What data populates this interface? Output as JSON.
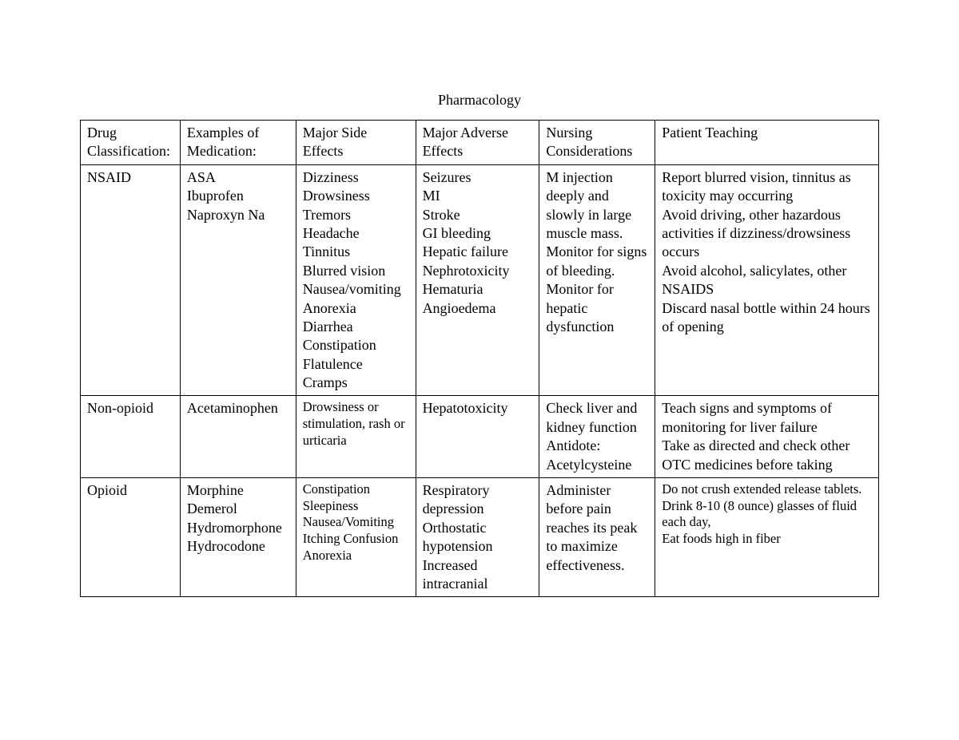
{
  "page": {
    "title": "Pharmacology"
  },
  "table": {
    "headers": {
      "c1": "Drug Classification:",
      "c2": "Examples of Medication:",
      "c3": "Major Side Effects",
      "c4": "Major Adverse Effects",
      "c5": "Nursing Considerations",
      "c6": "Patient Teaching"
    },
    "rows": [
      {
        "c1": "NSAID",
        "c2": "ASA\nIbuprofen\nNaproxyn Na",
        "c3": "Dizziness\nDrowsiness\nTremors\nHeadache\nTinnitus\nBlurred vision\nNausea/vomiting Anorexia\nDiarrhea\nConstipation\nFlatulence\nCramps",
        "c4": "Seizures\nMI\nStroke\nGI bleeding\nHepatic failure\nNephrotoxicity\nHematuria\nAngioedema",
        "c5": "M injection deeply and slowly in large muscle mass.\nMonitor for signs of bleeding.\nMonitor for hepatic dysfunction",
        "c6": "Report blurred vision, tinnitus as toxicity may occurring\nAvoid driving, other hazardous activities if dizziness/drowsiness occurs\nAvoid alcohol, salicylates, other NSAIDS\nDiscard nasal bottle within 24 hours of opening",
        "c3_class": "",
        "c6_class": ""
      },
      {
        "c1": "Non-opioid",
        "c2": "Acetaminophen",
        "c3": "Drowsiness or stimulation, rash or urticaria",
        "c4": "Hepatotoxicity",
        "c5": "Check liver and kidney function\nAntidote: Acetylcysteine",
        "c6": "Teach signs and symptoms of monitoring for liver failure\nTake as directed and check other OTC medicines before taking",
        "c3_class": "smaller",
        "c6_class": ""
      },
      {
        "c1": "Opioid",
        "c2": "Morphine\nDemerol\nHydromorphone\nHydrocodone",
        "c3": "Constipation\nSleepiness\nNausea/Vomiting\nItching Confusion\nAnorexia",
        "c4": "Respiratory depression\nOrthostatic hypotension\nIncreased intracranial",
        "c5": "Administer before pain reaches its peak to maximize effectiveness.",
        "c6": "Do not crush extended release tablets.\nDrink 8-10 (8 ounce) glasses of fluid each day,\nEat foods high in fiber",
        "c3_class": "smaller",
        "c6_class": "smaller"
      }
    ]
  }
}
